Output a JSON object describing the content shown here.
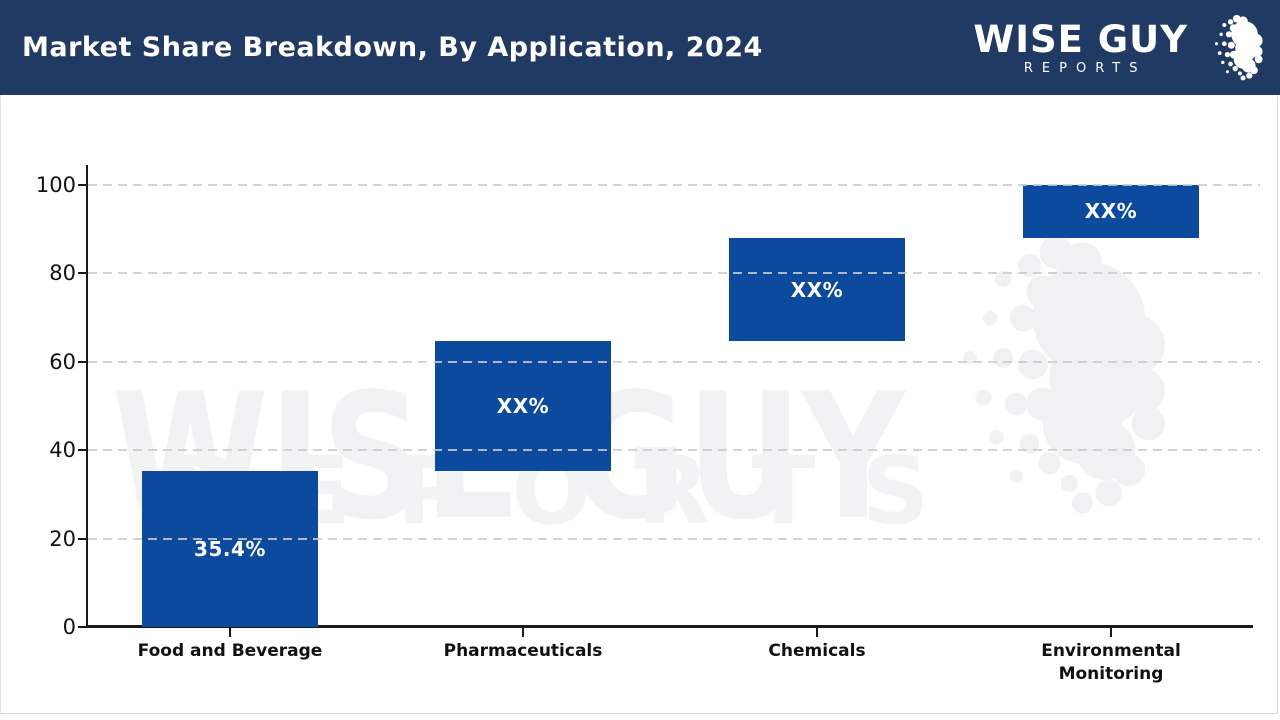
{
  "header": {
    "logo": {
      "line1": "WISE GUY",
      "line2": "REPORTS"
    }
  },
  "watermark": {
    "line1": "WISE GUY",
    "line2": "REPORTS"
  },
  "chart_data": {
    "type": "bar",
    "subtype": "waterfall",
    "title": "Market Share Breakdown, By Application, 2024",
    "categories": [
      "Food and Beverage",
      "Pharmaceuticals",
      "Chemicals",
      "Environmental Monitoring"
    ],
    "segments": [
      {
        "category": "Food and Beverage",
        "start": 0,
        "end": 35.4,
        "label": "35.4%"
      },
      {
        "category": "Pharmaceuticals",
        "start": 35.4,
        "end": 64.6,
        "label": "XX%"
      },
      {
        "category": "Chemicals",
        "start": 64.6,
        "end": 88.1,
        "label": "XX%"
      },
      {
        "category": "Environmental Monitoring",
        "start": 88.1,
        "end": 100,
        "label": "XX%"
      }
    ],
    "ylim": [
      0,
      100
    ],
    "yticks": [
      0,
      20,
      40,
      60,
      80,
      100
    ],
    "xlabel": "",
    "ylabel": "",
    "grid": "dashed horizontal",
    "legend": "none",
    "bar_color": "#0c4a9d",
    "bar_label_color": "#ffffff"
  }
}
